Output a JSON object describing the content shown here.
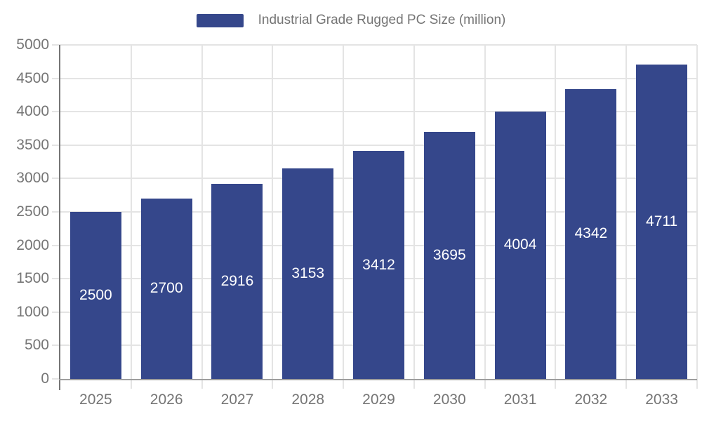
{
  "legend": {
    "label": "Industrial Grade Rugged PC Size (million)"
  },
  "colors": {
    "bar": "#35478b",
    "background": "#ffffff",
    "grid": "#e4e4e4",
    "y_axis_line": "#757575",
    "x_axis_line": "#9e9e9e",
    "tick_label": "#757575",
    "legend_text": "#757575",
    "value_label": "#ffffff"
  },
  "chart_data": {
    "type": "bar",
    "title": "Industrial Grade Rugged PC Size (million)",
    "series_name": "Industrial Grade Rugged PC Size (million)",
    "categories": [
      "2025",
      "2026",
      "2027",
      "2028",
      "2029",
      "2030",
      "2031",
      "2032",
      "2033"
    ],
    "values": [
      2500,
      2700,
      2916,
      3153,
      3412,
      3695,
      4004,
      4342,
      4711
    ],
    "xlabel": "",
    "ylabel": "",
    "ylim": [
      0,
      5000
    ],
    "ytick_step": 500,
    "yticks": [
      0,
      500,
      1000,
      1500,
      2000,
      2500,
      3000,
      3500,
      4000,
      4500,
      5000
    ],
    "grid": true,
    "legend_position": "top-center",
    "value_labels": "inside-center"
  }
}
